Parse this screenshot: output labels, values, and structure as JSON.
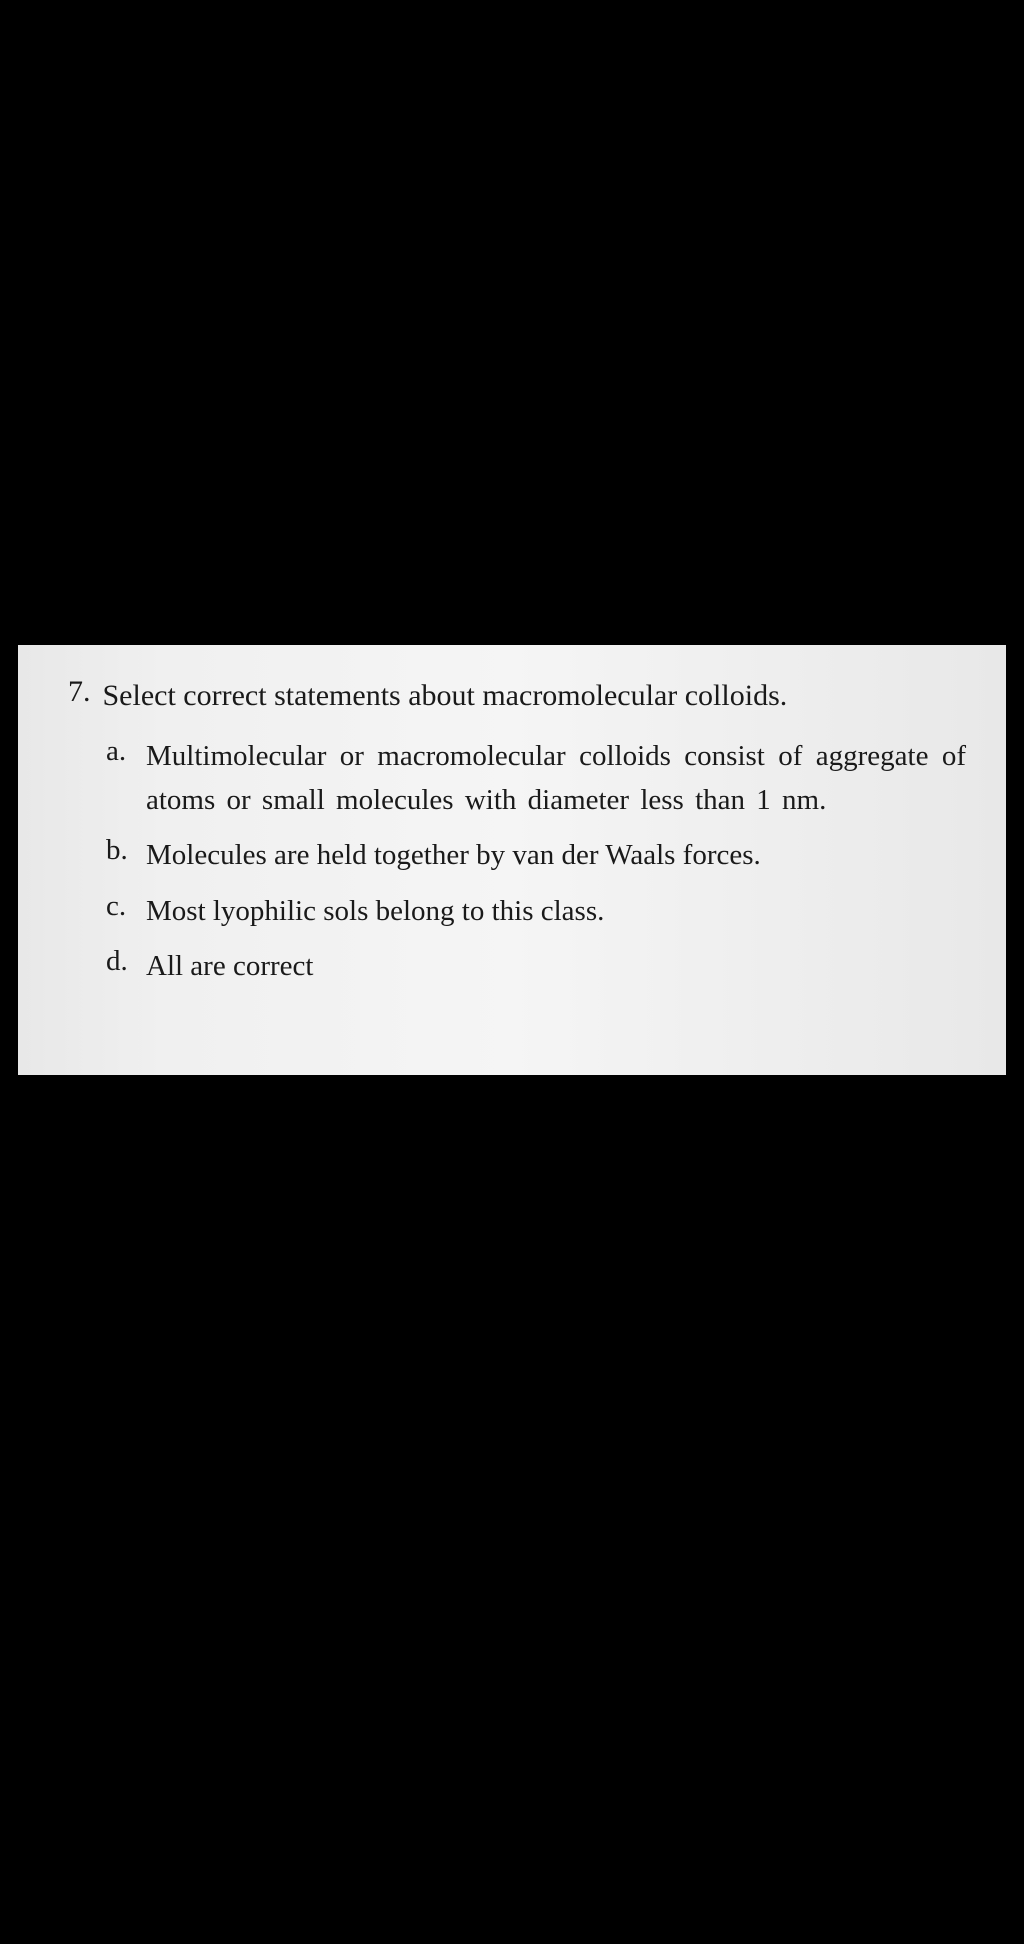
{
  "document": {
    "background_color": "#000000",
    "paper_bg_gradient": [
      "#e8e8e8",
      "#f0f0f0",
      "#f5f5f5",
      "#e8e8e8"
    ],
    "text_color": "#1a1a1a",
    "font_family": "Georgia, Times New Roman, serif",
    "question_fontsize": 30,
    "option_fontsize": 29
  },
  "question": {
    "number": "7.",
    "text": "Select correct statements about macromolecular colloids."
  },
  "options": {
    "a": {
      "letter": "a.",
      "text": "Multimolecular or macromolecular colloids consist of aggregate of atoms or small molecules with diameter less than 1 nm."
    },
    "b": {
      "letter": "b.",
      "text": "Molecules are held together by van der Waals forces."
    },
    "c": {
      "letter": "c.",
      "text": "Most lyophilic sols belong to this class."
    },
    "d": {
      "letter": "d.",
      "text": "All are correct"
    }
  }
}
